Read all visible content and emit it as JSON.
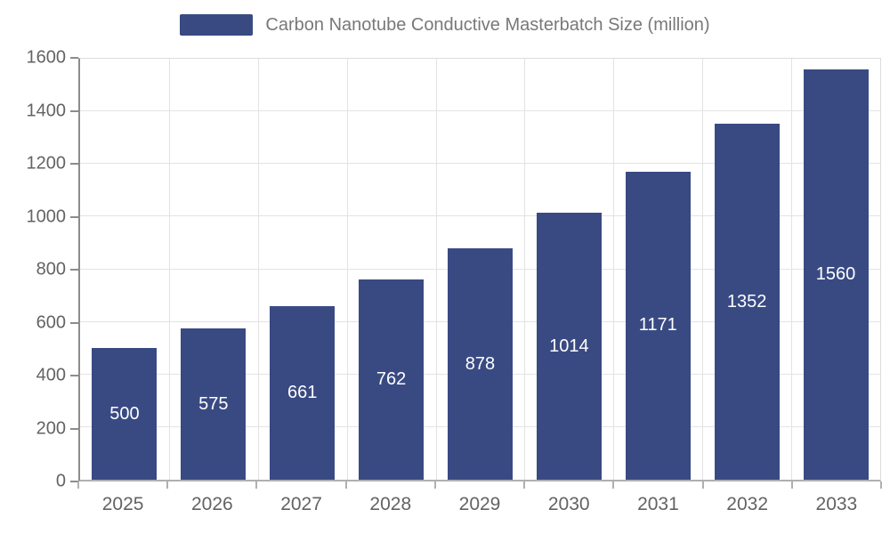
{
  "legend": {
    "label": "Carbon Nanotube Conductive Masterbatch Size (million)"
  },
  "colors": {
    "bar": "#394a83",
    "bar_label": "#ffffff",
    "grid": "#e3e3e3",
    "axis_label": "#636363",
    "legend_text": "#787878",
    "axis_line": "#8c8c8c",
    "baseline": "#b0b0b0",
    "plot_border": "#dcdcdc"
  },
  "chart_data": {
    "type": "bar",
    "title": "Carbon Nanotube Conductive Masterbatch Size (million)",
    "categories": [
      "2025",
      "2026",
      "2027",
      "2028",
      "2029",
      "2030",
      "2031",
      "2032",
      "2033"
    ],
    "values": [
      500,
      575,
      661,
      762,
      878,
      1014,
      1171,
      1352,
      1560
    ],
    "xlabel": "",
    "ylabel": "",
    "ylim": [
      0,
      1600
    ],
    "ytick_step": 200,
    "grid": true,
    "legend_position": "top",
    "bar_label_position": "inside-center"
  }
}
